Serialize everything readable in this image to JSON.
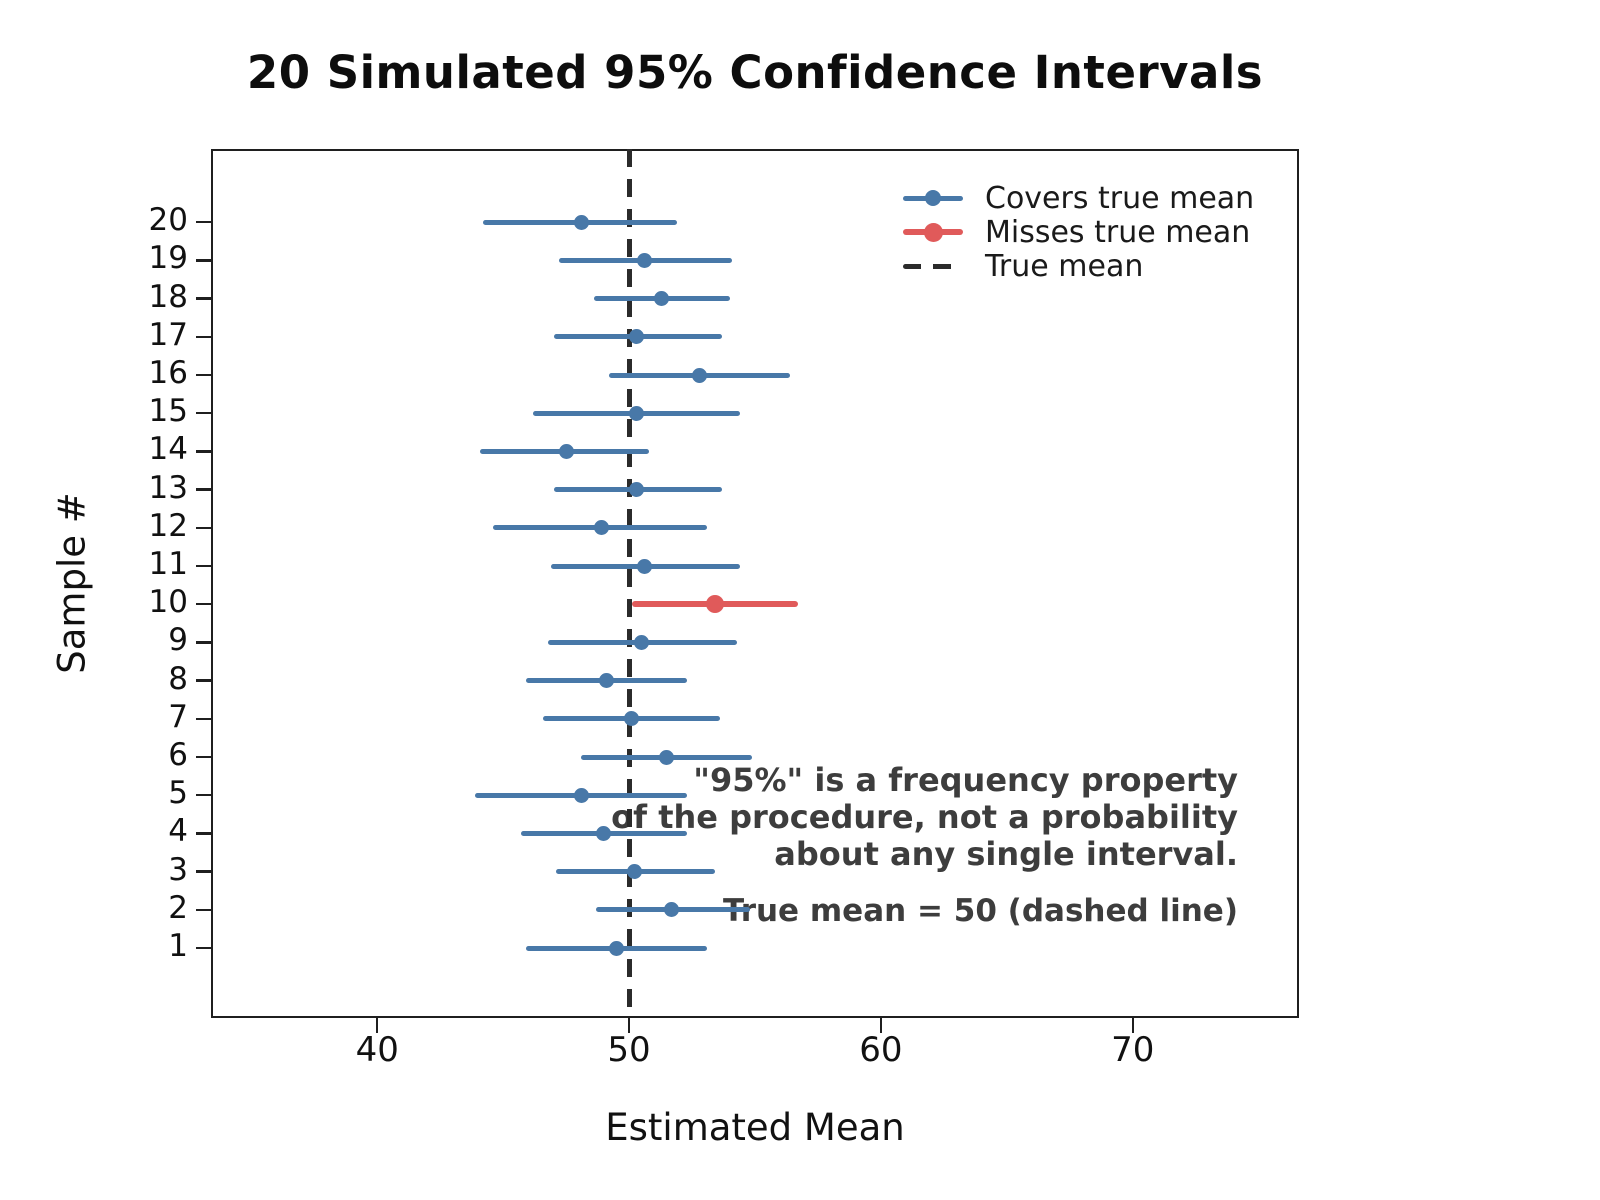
{
  "title": "20 Simulated 95% Confidence Intervals",
  "x_axis_label": "Estimated Mean",
  "y_axis_label": "Sample #",
  "legend": {
    "covers_label": "Covers true mean",
    "misses_label": "Misses true mean",
    "true_mean_label": "True mean"
  },
  "annotation": {
    "line1": "\"95%\" is a frequency property",
    "line2": "of the procedure, not a probability",
    "line3": "about any single interval.",
    "true_mean_note": "True mean = 50 (dashed line)"
  },
  "colors": {
    "covers": "#4878a8",
    "misses": "#e05a5a",
    "true_mean_line": "#2b2b2b",
    "annotation_text": "#3d3d3d",
    "axis": "#1f1f1f"
  },
  "chart_data": {
    "type": "scatter",
    "subtype": "horizontal-confidence-intervals",
    "title": "20 Simulated 95% Confidence Intervals",
    "xlabel": "Estimated Mean",
    "ylabel": "Sample #",
    "xlim": [
      33.4,
      76.6
    ],
    "x_ticks": [
      40,
      50,
      60,
      70
    ],
    "y_ticks": [
      1,
      2,
      3,
      4,
      5,
      6,
      7,
      8,
      9,
      10,
      11,
      12,
      13,
      14,
      15,
      16,
      17,
      18,
      19,
      20
    ],
    "true_mean": 50,
    "legend_position": "upper right",
    "grid": false,
    "samples": [
      {
        "sample": 1,
        "mean": 49.5,
        "lower": 45.9,
        "upper": 53.1,
        "covers": true
      },
      {
        "sample": 2,
        "mean": 51.7,
        "lower": 48.7,
        "upper": 54.8,
        "covers": true
      },
      {
        "sample": 3,
        "mean": 50.2,
        "lower": 47.1,
        "upper": 53.4,
        "covers": true
      },
      {
        "sample": 4,
        "mean": 49.0,
        "lower": 45.7,
        "upper": 52.3,
        "covers": true
      },
      {
        "sample": 5,
        "mean": 48.1,
        "lower": 43.9,
        "upper": 52.3,
        "covers": true
      },
      {
        "sample": 6,
        "mean": 51.5,
        "lower": 48.1,
        "upper": 54.9,
        "covers": true
      },
      {
        "sample": 7,
        "mean": 50.1,
        "lower": 46.6,
        "upper": 53.6,
        "covers": true
      },
      {
        "sample": 8,
        "mean": 49.1,
        "lower": 45.9,
        "upper": 52.3,
        "covers": true
      },
      {
        "sample": 9,
        "mean": 50.5,
        "lower": 46.8,
        "upper": 54.3,
        "covers": true
      },
      {
        "sample": 10,
        "mean": 53.4,
        "lower": 50.1,
        "upper": 56.7,
        "covers": false
      },
      {
        "sample": 11,
        "mean": 50.6,
        "lower": 46.9,
        "upper": 54.4,
        "covers": true
      },
      {
        "sample": 12,
        "mean": 48.9,
        "lower": 44.6,
        "upper": 53.1,
        "covers": true
      },
      {
        "sample": 13,
        "mean": 50.3,
        "lower": 47.0,
        "upper": 53.7,
        "covers": true
      },
      {
        "sample": 14,
        "mean": 47.5,
        "lower": 44.1,
        "upper": 50.8,
        "covers": true
      },
      {
        "sample": 15,
        "mean": 50.3,
        "lower": 46.2,
        "upper": 54.4,
        "covers": true
      },
      {
        "sample": 16,
        "mean": 52.8,
        "lower": 49.2,
        "upper": 56.4,
        "covers": true
      },
      {
        "sample": 17,
        "mean": 50.3,
        "lower": 47.0,
        "upper": 53.7,
        "covers": true
      },
      {
        "sample": 18,
        "mean": 51.3,
        "lower": 48.6,
        "upper": 54.0,
        "covers": true
      },
      {
        "sample": 19,
        "mean": 50.6,
        "lower": 47.2,
        "upper": 54.1,
        "covers": true
      },
      {
        "sample": 20,
        "mean": 48.1,
        "lower": 44.2,
        "upper": 51.9,
        "covers": true
      }
    ]
  }
}
